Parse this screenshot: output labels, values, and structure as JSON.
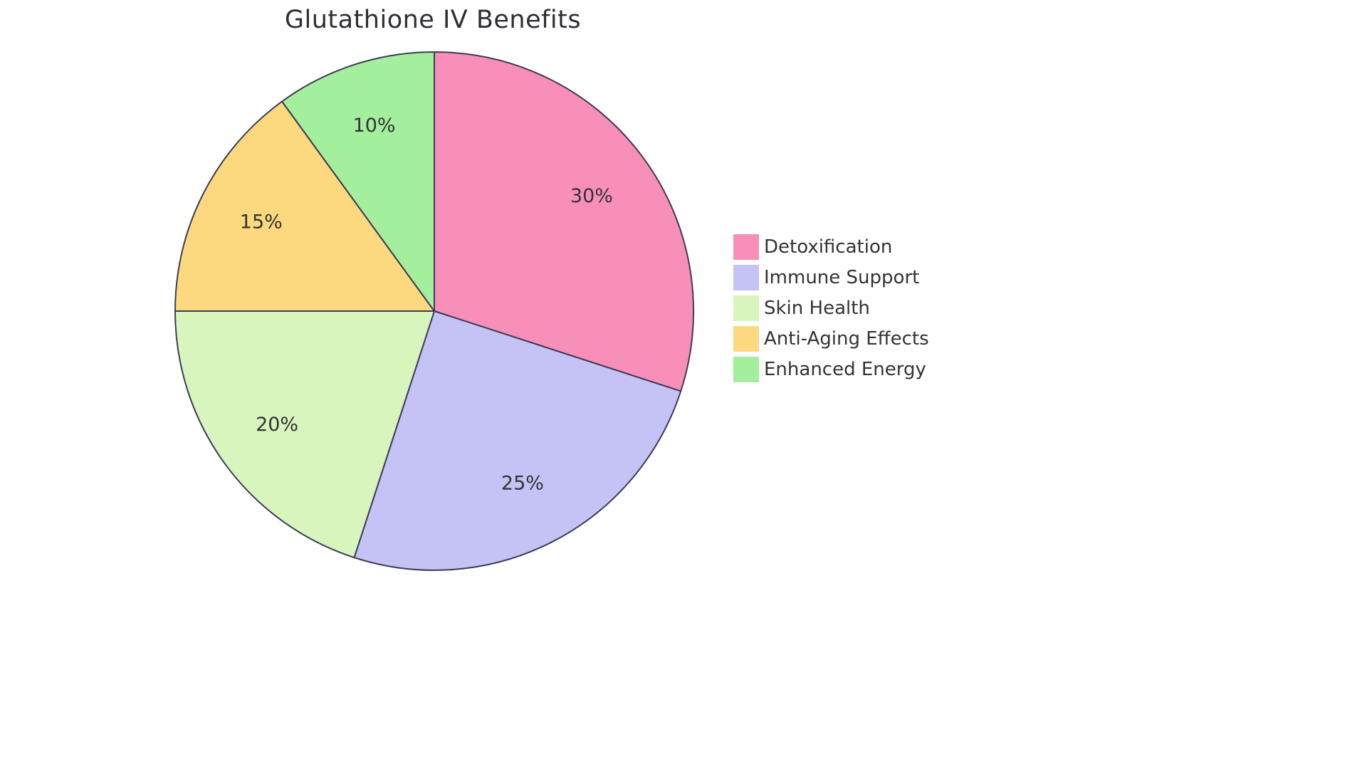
{
  "chart_data": {
    "type": "pie",
    "title": "Glutathione IV Benefits",
    "labels": [
      "Detoxification",
      "Immune Support",
      "Skin Health",
      "Anti-Aging Effects",
      "Enhanced Energy"
    ],
    "values": [
      30,
      25,
      20,
      15,
      10
    ],
    "percent_labels": [
      "30%",
      "25%",
      "20%",
      "15%",
      "10%"
    ],
    "unit": "%",
    "colors": [
      "#F78FB8",
      "#C5C2F5",
      "#D8F5BE",
      "#FCD97F",
      "#A3EF9E"
    ],
    "slice_border_color": "#3D3C55",
    "label_text_color": "#333333",
    "start_angle_deg": 0,
    "direction": "clockwise",
    "legend_position": "right",
    "background": "#FFFFFF"
  }
}
